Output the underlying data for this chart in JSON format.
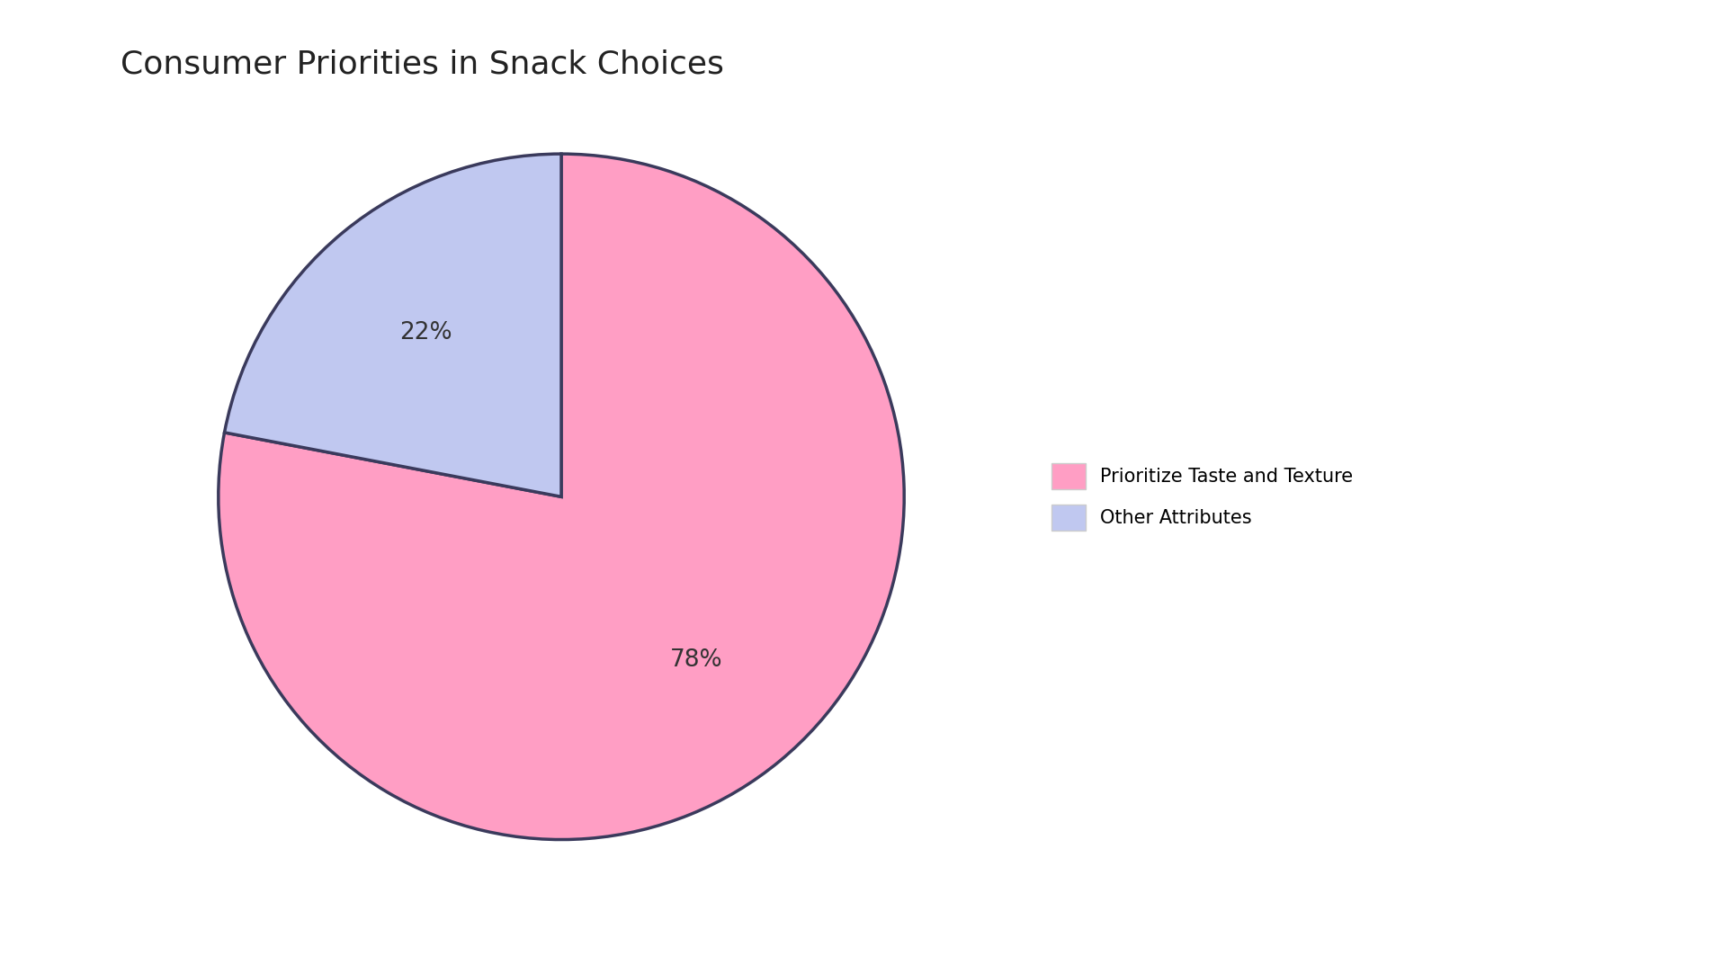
{
  "title": "Consumer Priorities in Snack Choices",
  "values": [
    78,
    22
  ],
  "labels": [
    "Prioritize Taste and Texture",
    "Other Attributes"
  ],
  "colors": [
    "#FF9EC4",
    "#C0C8F0"
  ],
  "edge_color": "#3a3a5c",
  "edge_linewidth": 2.5,
  "autopct_labels": [
    "78%",
    "22%"
  ],
  "startangle": 90,
  "title_fontsize": 26,
  "legend_fontsize": 15,
  "autopct_fontsize": 19,
  "background_color": "#ffffff"
}
